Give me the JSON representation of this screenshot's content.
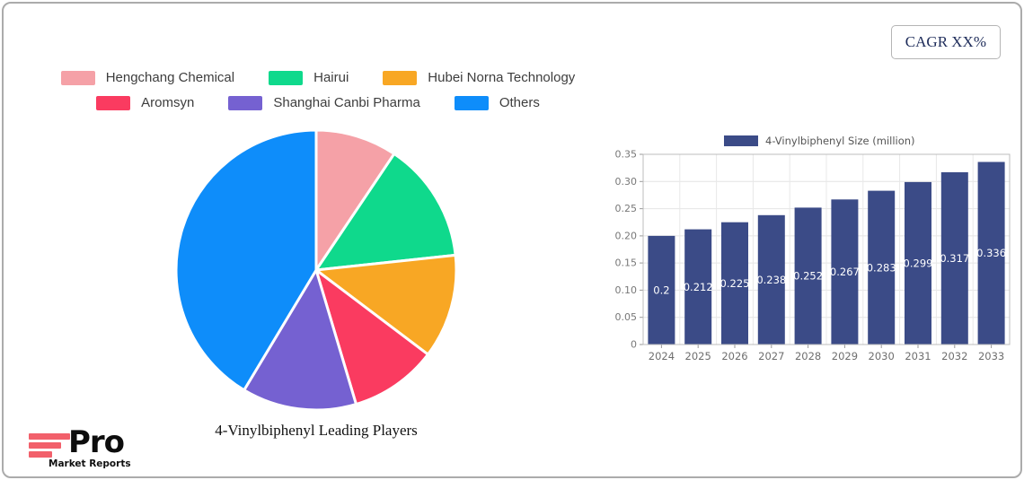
{
  "cagr_box": {
    "label": "CAGR XX%"
  },
  "logo": {
    "title": "Pro",
    "subtitle": "Market Reports",
    "bar_color": "#f2606b"
  },
  "chart_data": [
    {
      "type": "pie",
      "title": "4-Vinylbiphenyl Leading Players",
      "labels": [
        "Hengchang Chemical",
        "Hairui",
        "Hubei Norna Technology",
        "Aromsyn",
        "Shanghai Canbi Pharma",
        "Others"
      ],
      "values": [
        9.4,
        13.9,
        12.0,
        10.1,
        13.2,
        41.4
      ],
      "values_estimated_from_slice_angles": true,
      "colors": [
        "#f5a1a7",
        "#0fd98c",
        "#f8a724",
        "#fa3b60",
        "#7561d1",
        "#0e8dfa"
      ],
      "legend_position": "top",
      "legend_rows": [
        [
          0,
          1,
          2
        ],
        [
          3,
          4,
          5
        ]
      ],
      "start_angle": "12 o'clock, clockwise",
      "slice_border_color": "#ffffff"
    },
    {
      "type": "bar",
      "categories": [
        "2024",
        "2025",
        "2026",
        "2027",
        "2028",
        "2029",
        "2030",
        "2031",
        "2032",
        "2033"
      ],
      "series": [
        {
          "name": "4-Vinylbiphenyl Size (million)",
          "values": [
            0.2,
            0.212,
            0.225,
            0.238,
            0.252,
            0.267,
            0.283,
            0.299,
            0.317,
            0.336
          ]
        }
      ],
      "bar_labels": [
        "0.2",
        "0.212",
        "0.225",
        "0.238",
        "0.252",
        "0.267",
        "0.283",
        "0.299",
        "0.317",
        "0.336"
      ],
      "ylim": [
        0,
        0.35
      ],
      "ytick_labels": [
        "0",
        "0.05",
        "0.10",
        "0.15",
        "0.20",
        "0.25",
        "0.30",
        "0.35"
      ],
      "bar_color": "#3b4b87",
      "bar_label_color": "#ffffff",
      "axis_text_color": "#787878",
      "grid": true,
      "legend_position": "top"
    }
  ]
}
